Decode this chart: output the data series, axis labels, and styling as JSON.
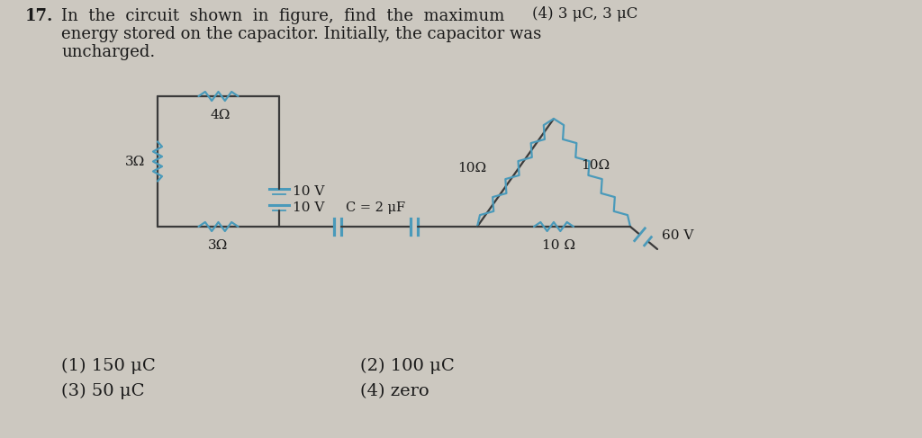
{
  "bg_color": "#ccc8c0",
  "text_color": "#1a1a1a",
  "title_top": "(4) 3 μC, 3 μC",
  "q_num": "17.",
  "q_line1": "In  the  circuit  shown  in  figure,  find  the  maximum",
  "q_line2": "energy stored on the capacitor. Initially, the capacitor was",
  "q_line3": "uncharged.",
  "options": [
    "(1) 150 μC",
    "(2) 100 μC",
    "(3) 50 μC",
    "(4) zero"
  ],
  "cc": "#4a9aba",
  "tc": "#1a1a1a",
  "lc": "#3a3a3a",
  "labels": {
    "4ohm": "4Ω",
    "3ohm_l": "3Ω",
    "3ohm_b": "3Ω",
    "10V_t": "10 V",
    "10V_b": "10 V",
    "10ohm_L": "10Ω",
    "10ohm_R": "10Ω",
    "10ohm_bot": "10 Ω",
    "C": "C = 2 μF",
    "60V": "60 V"
  }
}
